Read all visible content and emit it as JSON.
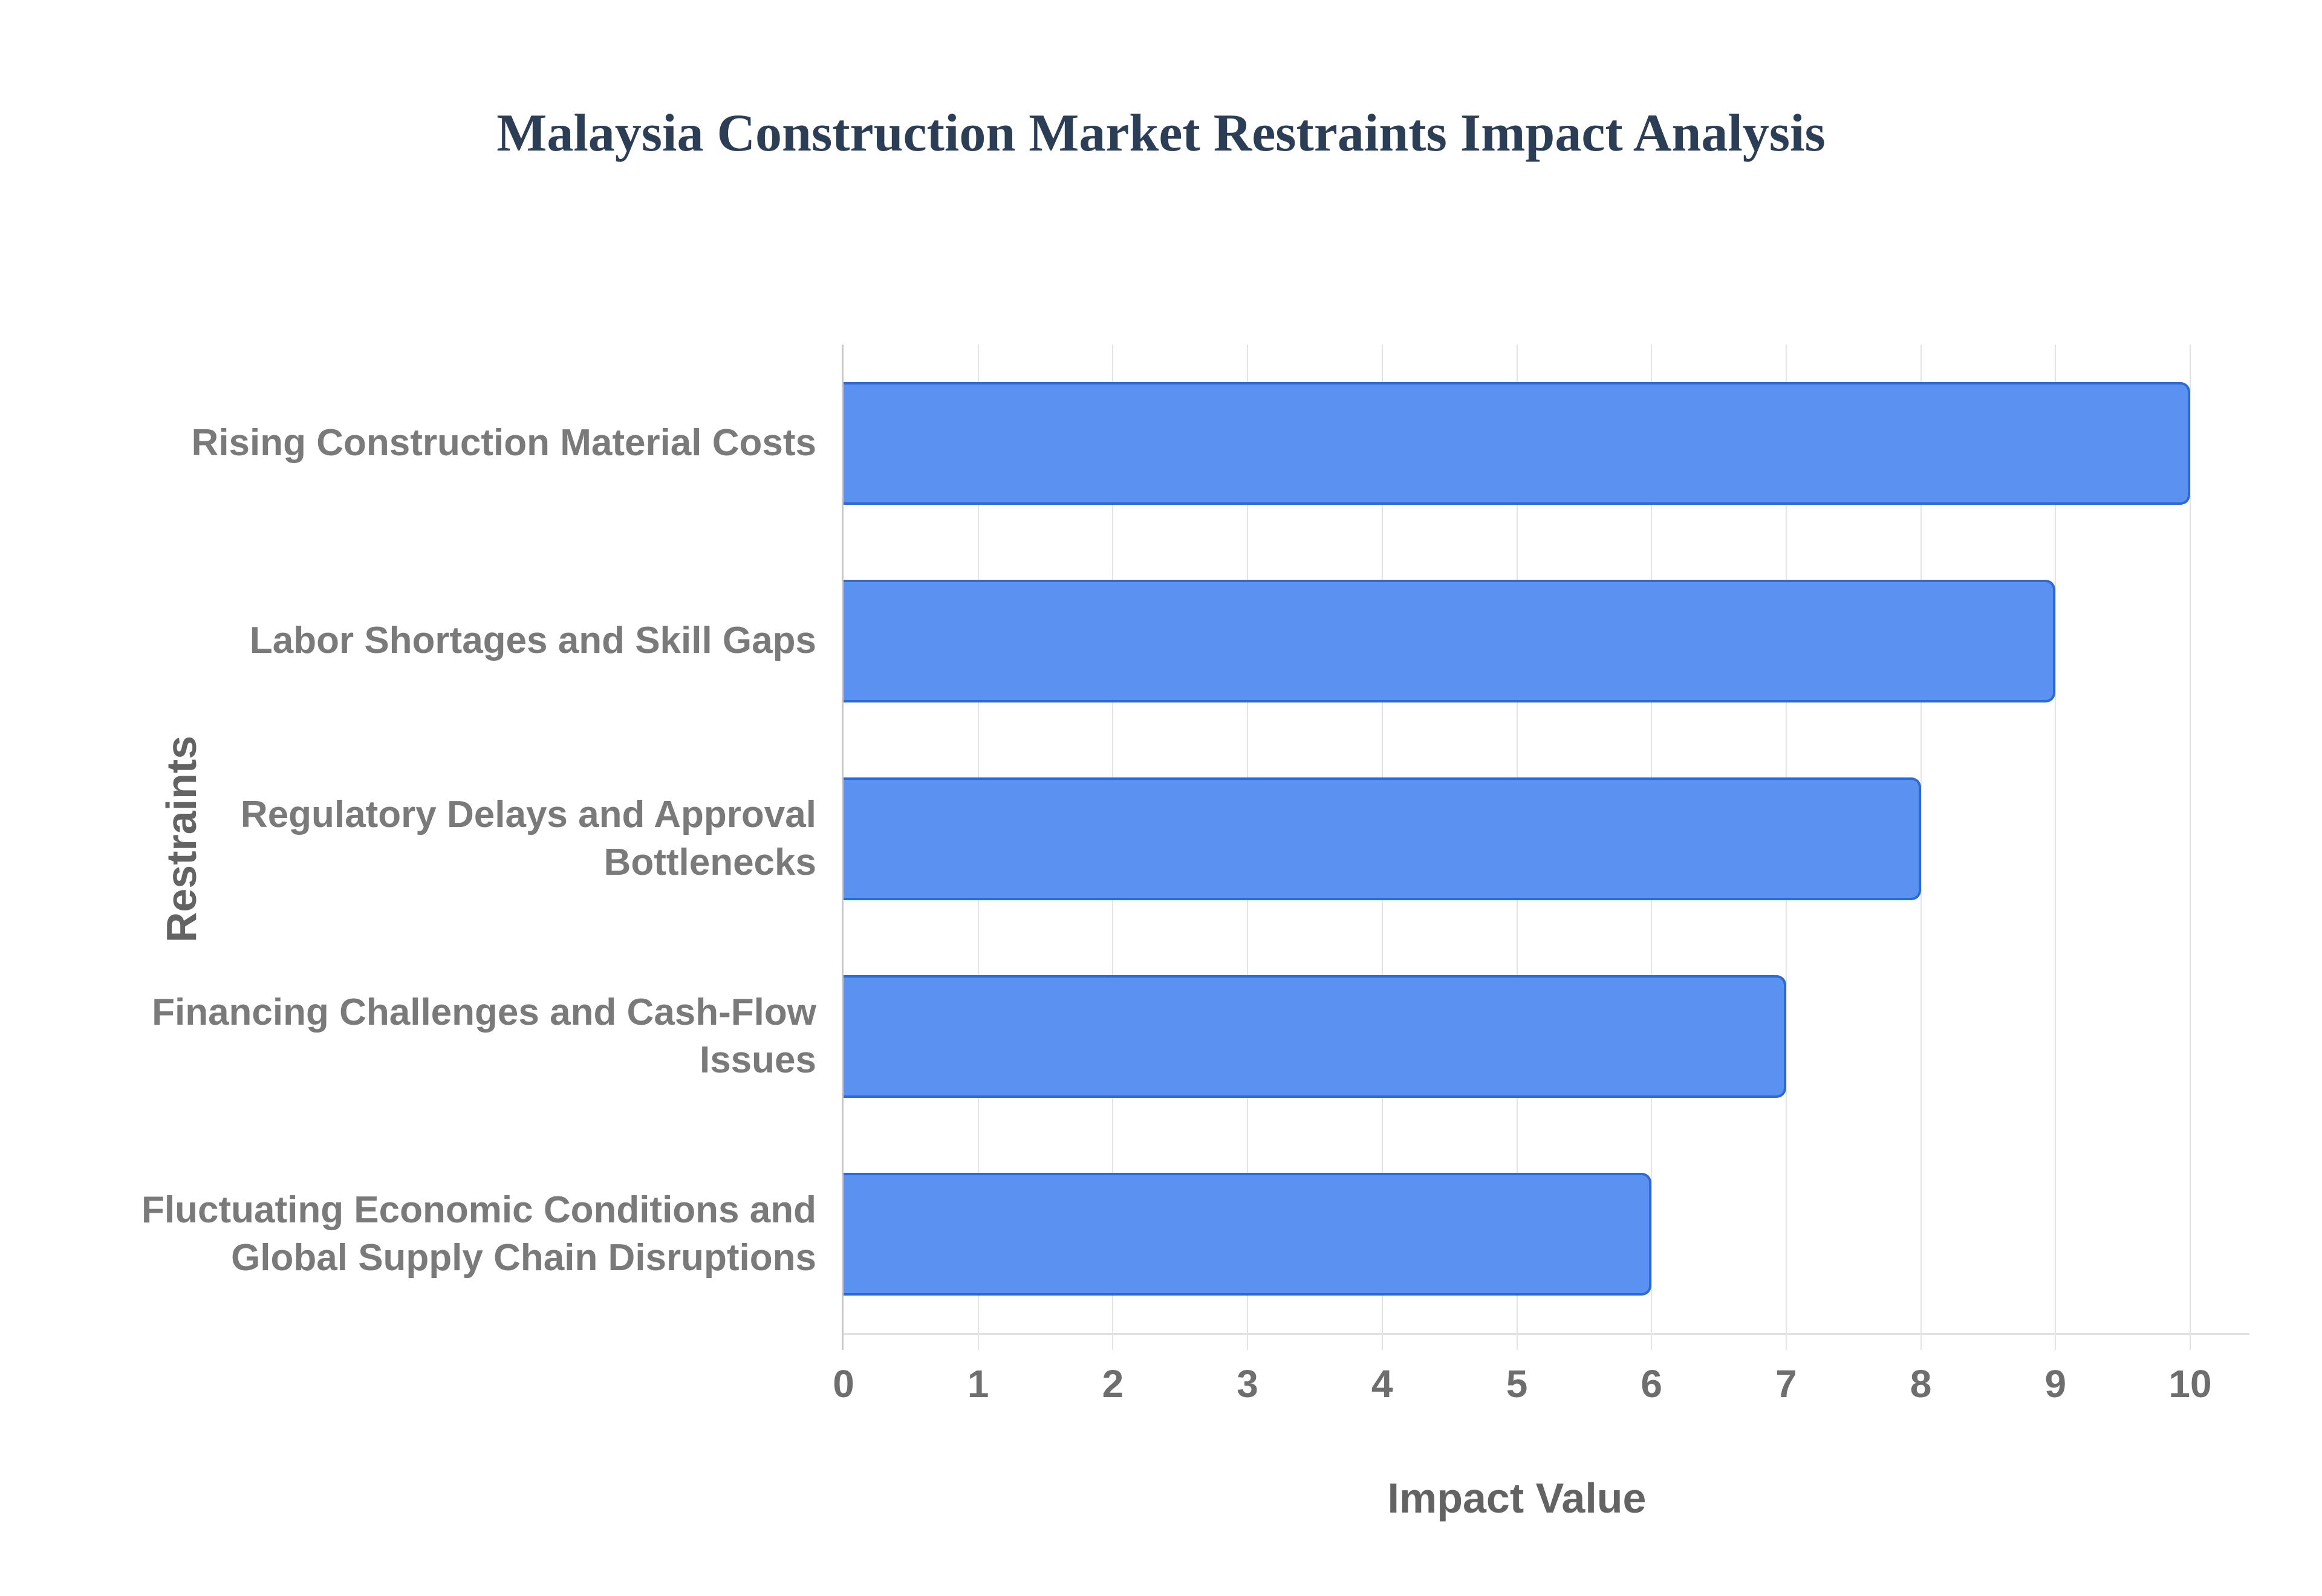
{
  "page": {
    "background": "#ffffff"
  },
  "chart_data": {
    "type": "bar",
    "orientation": "horizontal",
    "title": "Malaysia Construction Market Restraints Impact Analysis",
    "xlabel": "Impact Value",
    "ylabel": "Restraints",
    "categories": [
      "Rising Construction Material Costs",
      "Labor Shortages and Skill Gaps",
      "Regulatory Delays and Approval Bottlenecks",
      "Financing Challenges and Cash-Flow Issues",
      "Fluctuating Economic Conditions and Global Supply Chain Disruptions"
    ],
    "values": [
      10,
      9,
      8,
      7,
      6
    ],
    "xlim": [
      0,
      10
    ],
    "xticks": [
      0,
      1,
      2,
      3,
      4,
      5,
      6,
      7,
      8,
      9,
      10
    ],
    "grid": true,
    "legend": false,
    "colors": {
      "bar_fill": "#5b92f1",
      "bar_border": "#2e6ad5",
      "grid_line": "#e4e4e4",
      "axis_line": "#c9c9c9",
      "tick_label": "#6e6e6e",
      "category_label": "#7a7a7a",
      "axis_title": "#636363",
      "title": "#2c3e55"
    }
  }
}
